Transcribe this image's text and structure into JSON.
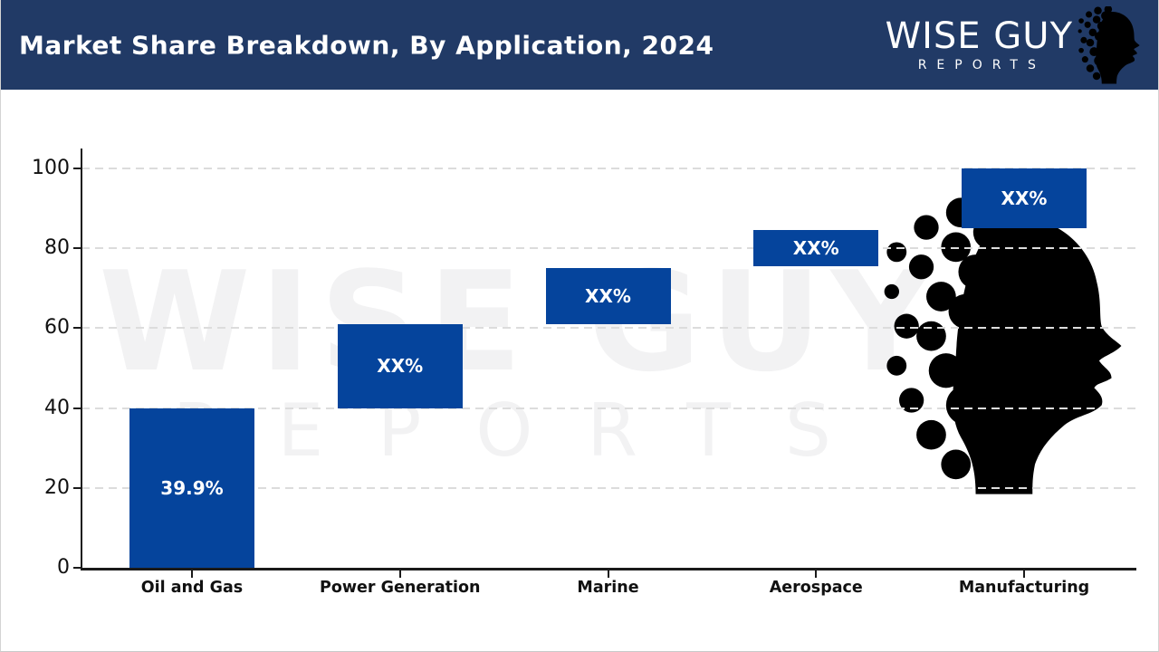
{
  "header": {
    "title": "Market Share Breakdown, By Application, 2024",
    "logo": {
      "primary": "WISE GUY",
      "secondary": "REPORTS"
    }
  },
  "watermark": {
    "primary": "WISE GUY",
    "secondary": "REPORTS"
  },
  "colors": {
    "header_bg": "#213a66",
    "bar": "#05449c",
    "gridline": "#dcdcdc",
    "axis": "#1a1a1a",
    "bar_label": "#ffffff",
    "watermark": "#f2f2f3"
  },
  "chart_data": {
    "type": "bar",
    "subtype": "waterfall",
    "title": "Market Share Breakdown, By Application, 2024",
    "xlabel": "",
    "ylabel": "",
    "categories": [
      "Oil and Gas",
      "Power Generation",
      "Marine",
      "Aerospace",
      "Manufacturing"
    ],
    "segments": [
      {
        "category": "Oil and Gas",
        "start": 0,
        "end": 39.9,
        "label": "39.9%"
      },
      {
        "category": "Power Generation",
        "start": 40,
        "end": 61,
        "label": "XX%"
      },
      {
        "category": "Marine",
        "start": 61,
        "end": 75,
        "label": "XX%"
      },
      {
        "category": "Aerospace",
        "start": 75.5,
        "end": 84.5,
        "label": "XX%"
      },
      {
        "category": "Manufacturing",
        "start": 85,
        "end": 100,
        "label": "XX%"
      }
    ],
    "y_ticks": [
      0,
      20,
      40,
      60,
      80,
      100
    ],
    "ylim": [
      0,
      105
    ],
    "grid": "horizontal-dashed",
    "legend": "none"
  }
}
